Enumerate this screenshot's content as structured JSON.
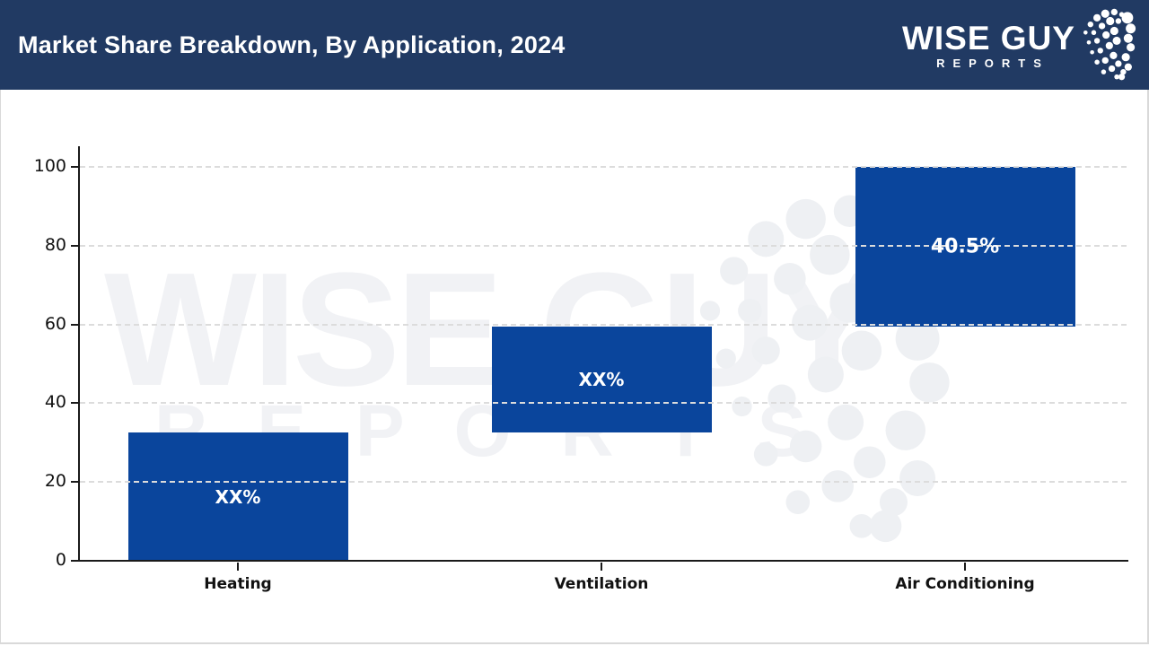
{
  "header": {
    "title": "Market Share Breakdown, By Application, 2024",
    "logo": {
      "line1": "WISE GUY",
      "line2": "REPORTS"
    }
  },
  "watermark": {
    "line1": "WISE GUY",
    "line2": "REPORTS"
  },
  "colors": {
    "header_bg": "#213A63",
    "bar": "#0A459C",
    "grid": "#DCDCDC",
    "axis": "#1A1A1A",
    "tick_text": "#111111",
    "bar_label_text": "#FFFFFF",
    "watermark": "#F1F2F5",
    "watermark_face": "#EEF0F3",
    "figure_border": "#D9D9D9"
  },
  "chart_data": {
    "type": "bar",
    "subtype": "floating-segment-waterfall",
    "categories": [
      "Heating",
      "Ventilation",
      "Air Conditioning"
    ],
    "bars": [
      {
        "category": "Heating",
        "base": 0,
        "top": 32.5,
        "value": 32.5,
        "label": "XX%",
        "label_size": 20
      },
      {
        "category": "Ventilation",
        "base": 32.5,
        "top": 59.5,
        "value": 27,
        "label": "XX%",
        "label_size": 20
      },
      {
        "category": "Air Conditioning",
        "base": 59.5,
        "top": 100,
        "value": 40.5,
        "label": "40.5%",
        "label_size": 22
      }
    ],
    "ylim": [
      0,
      100
    ],
    "yticks": [
      0,
      20,
      40,
      60,
      80,
      100
    ],
    "xlabel": "",
    "ylabel": "",
    "grid": {
      "horizontal": true,
      "style": "dashed",
      "drawn_above_bars": true
    },
    "legend": "none"
  }
}
